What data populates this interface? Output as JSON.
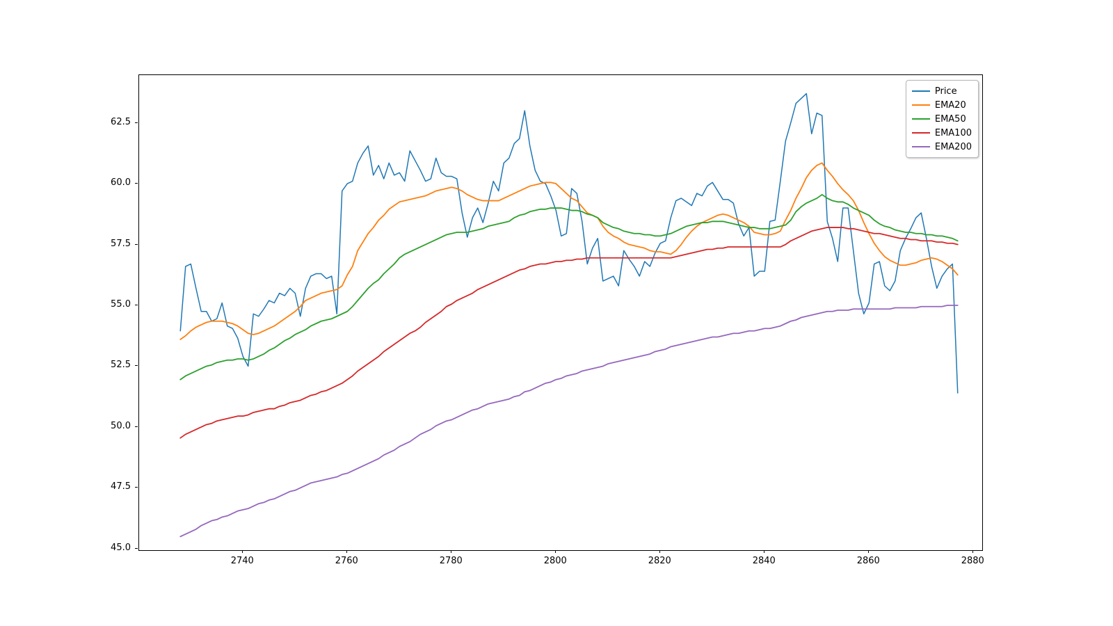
{
  "chart_data": {
    "type": "line",
    "x_start": 2728,
    "x_step": 1,
    "xlabel": "",
    "ylabel": "",
    "title": "",
    "xlim": [
      2720.1,
      2881.7
    ],
    "ylim": [
      44.94,
      64.46
    ],
    "x_ticks": [
      2740,
      2760,
      2780,
      2800,
      2820,
      2840,
      2860,
      2880
    ],
    "y_ticks": [
      45.0,
      47.5,
      50.0,
      52.5,
      55.0,
      57.5,
      60.0,
      62.5
    ],
    "grid": false,
    "legend_position": "upper right",
    "series": [
      {
        "name": "Price",
        "color": "#1f77b4",
        "line_width": 1.5,
        "values": [
          53.95,
          56.6,
          56.7,
          55.7,
          54.75,
          54.75,
          54.35,
          54.45,
          55.1,
          54.15,
          54.05,
          53.65,
          52.9,
          52.5,
          54.65,
          54.55,
          54.85,
          55.2,
          55.1,
          55.5,
          55.4,
          55.7,
          55.5,
          54.55,
          55.7,
          56.2,
          56.3,
          56.3,
          56.1,
          56.2,
          54.65,
          59.7,
          60.0,
          60.1,
          60.85,
          61.25,
          61.55,
          60.35,
          60.75,
          60.2,
          60.85,
          60.35,
          60.45,
          60.1,
          61.35,
          60.95,
          60.55,
          60.1,
          60.2,
          61.05,
          60.45,
          60.3,
          60.3,
          60.2,
          58.8,
          57.8,
          58.6,
          59.0,
          58.4,
          59.2,
          60.1,
          59.7,
          60.85,
          61.05,
          61.65,
          61.85,
          63.0,
          61.55,
          60.55,
          60.1,
          60.0,
          59.5,
          58.9,
          57.85,
          57.95,
          59.8,
          59.6,
          58.45,
          56.7,
          57.35,
          57.75,
          56.0,
          56.1,
          56.2,
          55.8,
          57.25,
          56.9,
          56.6,
          56.2,
          56.8,
          56.6,
          57.15,
          57.55,
          57.65,
          58.6,
          59.3,
          59.4,
          59.25,
          59.1,
          59.6,
          59.5,
          59.9,
          60.05,
          59.7,
          59.35,
          59.35,
          59.2,
          58.35,
          57.85,
          58.2,
          56.2,
          56.4,
          56.4,
          58.45,
          58.5,
          60.1,
          61.75,
          62.5,
          63.3,
          63.5,
          63.7,
          62.05,
          62.9,
          62.8,
          58.45,
          57.75,
          56.8,
          59.0,
          59.0,
          57.25,
          55.5,
          54.65,
          55.1,
          56.7,
          56.8,
          55.8,
          55.6,
          56.0,
          57.25,
          57.75,
          58.15,
          58.6,
          58.8,
          57.75,
          56.6,
          55.7,
          56.2,
          56.5,
          56.7,
          51.4
        ]
      },
      {
        "name": "EMA20",
        "color": "#ff7f0e",
        "line_width": 1.8,
        "values": [
          53.6,
          53.75,
          53.95,
          54.1,
          54.2,
          54.3,
          54.35,
          54.35,
          54.35,
          54.3,
          54.25,
          54.15,
          54.0,
          53.85,
          53.8,
          53.85,
          53.95,
          54.05,
          54.15,
          54.3,
          54.45,
          54.6,
          54.75,
          54.95,
          55.2,
          55.3,
          55.4,
          55.5,
          55.55,
          55.6,
          55.65,
          55.8,
          56.25,
          56.6,
          57.25,
          57.6,
          57.95,
          58.2,
          58.5,
          58.7,
          58.95,
          59.1,
          59.25,
          59.3,
          59.35,
          59.4,
          59.45,
          59.5,
          59.6,
          59.7,
          59.75,
          59.8,
          59.85,
          59.8,
          59.7,
          59.55,
          59.45,
          59.35,
          59.3,
          59.3,
          59.3,
          59.3,
          59.4,
          59.5,
          59.6,
          59.7,
          59.8,
          59.9,
          59.95,
          60.0,
          60.05,
          60.05,
          60.0,
          59.8,
          59.6,
          59.4,
          59.3,
          59.05,
          58.8,
          58.7,
          58.6,
          58.25,
          58.0,
          57.85,
          57.75,
          57.6,
          57.5,
          57.45,
          57.4,
          57.35,
          57.25,
          57.2,
          57.2,
          57.15,
          57.1,
          57.25,
          57.5,
          57.8,
          58.05,
          58.25,
          58.4,
          58.5,
          58.6,
          58.7,
          58.75,
          58.7,
          58.6,
          58.5,
          58.4,
          58.25,
          58.0,
          57.95,
          57.9,
          57.9,
          57.95,
          58.05,
          58.5,
          58.9,
          59.4,
          59.8,
          60.25,
          60.55,
          60.75,
          60.85,
          60.55,
          60.3,
          60.0,
          59.75,
          59.55,
          59.3,
          58.9,
          58.4,
          57.95,
          57.55,
          57.25,
          57.0,
          56.85,
          56.75,
          56.65,
          56.65,
          56.7,
          56.75,
          56.85,
          56.9,
          56.95,
          56.9,
          56.8,
          56.65,
          56.5,
          56.25
        ]
      },
      {
        "name": "EMA50",
        "color": "#2ca02c",
        "line_width": 1.8,
        "values": [
          51.95,
          52.1,
          52.2,
          52.3,
          52.4,
          52.5,
          52.55,
          52.65,
          52.7,
          52.75,
          52.75,
          52.8,
          52.8,
          52.75,
          52.8,
          52.9,
          53.0,
          53.15,
          53.25,
          53.4,
          53.55,
          53.65,
          53.8,
          53.9,
          54.0,
          54.15,
          54.25,
          54.35,
          54.4,
          54.45,
          54.55,
          54.65,
          54.75,
          54.95,
          55.2,
          55.45,
          55.7,
          55.9,
          56.05,
          56.3,
          56.5,
          56.7,
          56.95,
          57.1,
          57.2,
          57.3,
          57.4,
          57.5,
          57.6,
          57.7,
          57.8,
          57.9,
          57.95,
          58.0,
          58.0,
          58.0,
          58.05,
          58.1,
          58.15,
          58.25,
          58.3,
          58.35,
          58.4,
          58.45,
          58.6,
          58.7,
          58.75,
          58.85,
          58.9,
          58.95,
          58.95,
          59.0,
          59.0,
          59.0,
          58.95,
          58.9,
          58.9,
          58.85,
          58.75,
          58.7,
          58.6,
          58.4,
          58.3,
          58.2,
          58.15,
          58.05,
          58.0,
          57.95,
          57.95,
          57.9,
          57.9,
          57.85,
          57.85,
          57.9,
          57.95,
          58.05,
          58.15,
          58.25,
          58.3,
          58.35,
          58.4,
          58.4,
          58.45,
          58.45,
          58.45,
          58.4,
          58.35,
          58.3,
          58.25,
          58.2,
          58.2,
          58.15,
          58.15,
          58.15,
          58.2,
          58.25,
          58.3,
          58.5,
          58.85,
          59.05,
          59.2,
          59.3,
          59.4,
          59.55,
          59.4,
          59.3,
          59.25,
          59.25,
          59.15,
          59.0,
          58.9,
          58.8,
          58.7,
          58.5,
          58.35,
          58.25,
          58.2,
          58.1,
          58.05,
          58.0,
          58.0,
          57.95,
          57.95,
          57.9,
          57.9,
          57.85,
          57.85,
          57.8,
          57.75,
          57.65
        ]
      },
      {
        "name": "EMA100",
        "color": "#d62728",
        "line_width": 1.8,
        "values": [
          49.55,
          49.7,
          49.8,
          49.9,
          50.0,
          50.1,
          50.15,
          50.25,
          50.3,
          50.35,
          50.4,
          50.45,
          50.45,
          50.5,
          50.6,
          50.65,
          50.7,
          50.75,
          50.75,
          50.85,
          50.9,
          51.0,
          51.05,
          51.1,
          51.2,
          51.3,
          51.35,
          51.45,
          51.5,
          51.6,
          51.7,
          51.8,
          51.95,
          52.1,
          52.3,
          52.45,
          52.6,
          52.75,
          52.9,
          53.1,
          53.25,
          53.4,
          53.55,
          53.7,
          53.85,
          53.95,
          54.1,
          54.3,
          54.45,
          54.6,
          54.75,
          54.95,
          55.05,
          55.2,
          55.3,
          55.4,
          55.5,
          55.65,
          55.75,
          55.85,
          55.95,
          56.05,
          56.15,
          56.25,
          56.35,
          56.45,
          56.5,
          56.6,
          56.65,
          56.7,
          56.7,
          56.75,
          56.8,
          56.8,
          56.85,
          56.85,
          56.9,
          56.9,
          56.95,
          56.95,
          56.95,
          56.95,
          56.95,
          56.95,
          56.95,
          56.95,
          56.95,
          56.95,
          56.95,
          56.95,
          56.95,
          56.95,
          56.95,
          56.95,
          56.95,
          57.0,
          57.05,
          57.1,
          57.15,
          57.2,
          57.25,
          57.3,
          57.3,
          57.35,
          57.35,
          57.4,
          57.4,
          57.4,
          57.4,
          57.4,
          57.4,
          57.4,
          57.4,
          57.4,
          57.4,
          57.4,
          57.5,
          57.65,
          57.75,
          57.85,
          57.95,
          58.05,
          58.1,
          58.15,
          58.2,
          58.2,
          58.2,
          58.2,
          58.15,
          58.15,
          58.1,
          58.05,
          58.0,
          57.95,
          57.95,
          57.9,
          57.85,
          57.8,
          57.75,
          57.75,
          57.7,
          57.7,
          57.65,
          57.65,
          57.65,
          57.6,
          57.6,
          57.55,
          57.55,
          57.5
        ]
      },
      {
        "name": "EMA200",
        "color": "#9467bd",
        "line_width": 1.8,
        "values": [
          45.5,
          45.6,
          45.7,
          45.8,
          45.95,
          46.05,
          46.15,
          46.2,
          46.3,
          46.35,
          46.45,
          46.55,
          46.6,
          46.65,
          46.75,
          46.85,
          46.9,
          47.0,
          47.05,
          47.15,
          47.25,
          47.35,
          47.4,
          47.5,
          47.6,
          47.7,
          47.75,
          47.8,
          47.85,
          47.9,
          47.95,
          48.05,
          48.1,
          48.2,
          48.3,
          48.4,
          48.5,
          48.6,
          48.7,
          48.85,
          48.95,
          49.05,
          49.2,
          49.3,
          49.4,
          49.55,
          49.7,
          49.8,
          49.9,
          50.05,
          50.15,
          50.25,
          50.3,
          50.4,
          50.5,
          50.6,
          50.7,
          50.75,
          50.85,
          50.95,
          51.0,
          51.05,
          51.1,
          51.15,
          51.25,
          51.3,
          51.45,
          51.5,
          51.6,
          51.7,
          51.8,
          51.85,
          51.95,
          52.0,
          52.1,
          52.15,
          52.2,
          52.3,
          52.35,
          52.4,
          52.45,
          52.5,
          52.6,
          52.65,
          52.7,
          52.75,
          52.8,
          52.85,
          52.9,
          52.95,
          53.0,
          53.1,
          53.15,
          53.2,
          53.3,
          53.35,
          53.4,
          53.45,
          53.5,
          53.55,
          53.6,
          53.65,
          53.7,
          53.7,
          53.75,
          53.8,
          53.85,
          53.85,
          53.9,
          53.95,
          53.95,
          54.0,
          54.05,
          54.05,
          54.1,
          54.15,
          54.25,
          54.35,
          54.4,
          54.5,
          54.55,
          54.6,
          54.65,
          54.7,
          54.75,
          54.75,
          54.8,
          54.8,
          54.8,
          54.85,
          54.85,
          54.85,
          54.85,
          54.85,
          54.85,
          54.85,
          54.85,
          54.9,
          54.9,
          54.9,
          54.9,
          54.9,
          54.95,
          54.95,
          54.95,
          54.95,
          54.95,
          55.0,
          55.0,
          55.0
        ]
      }
    ]
  }
}
